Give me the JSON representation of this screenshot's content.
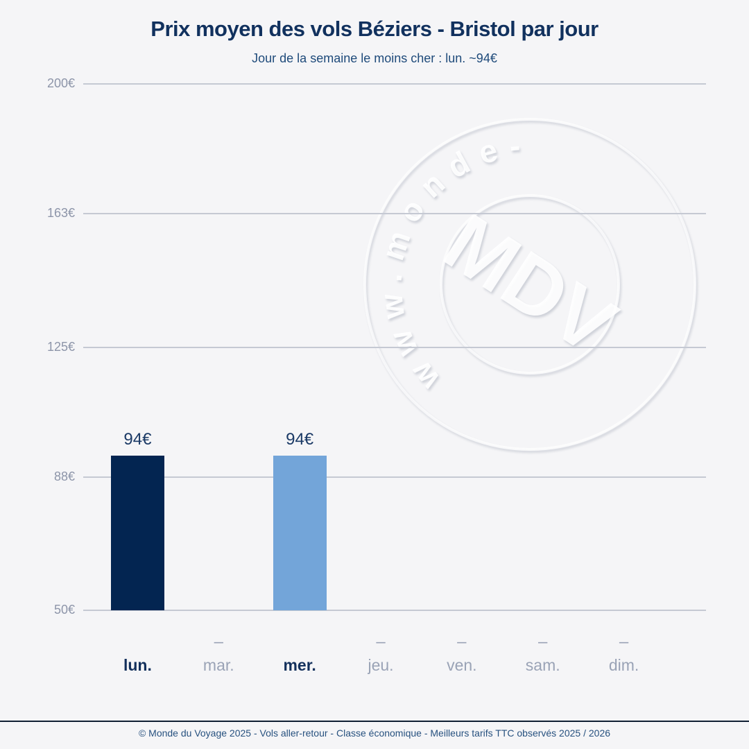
{
  "title": "Prix moyen des vols Béziers - Bristol par jour",
  "subtitle": "Jour de la semaine le moins cher : lun. ~94€",
  "watermark": {
    "ring_text": "www.monde-du-voyage.com ·",
    "center_text": "MDV"
  },
  "footer": {
    "text": "© Monde du Voyage 2025 - Vols aller-retour - Classe économique - Meilleurs tarifs TTC observés 2025 / 2026"
  },
  "colors": {
    "background": "#f5f5f7",
    "title": "#11315e",
    "subtitle": "#1e4a7a",
    "grid": "#c5c9d3",
    "axis_label": "#8d95a9",
    "bar_primary": "#032551",
    "bar_secondary": "#73a5d9",
    "value_label": "#1b3a66",
    "day_active": "#13305c",
    "day_inactive": "#9aa3b6",
    "footer_text": "#27517f",
    "footer_line": "#101f33"
  },
  "chart_data": {
    "type": "bar",
    "title": "Prix moyen des vols Béziers - Bristol par jour",
    "subtitle": "Jour de la semaine le moins cher : lun. ~94€",
    "categories": [
      "lun.",
      "mar.",
      "mer.",
      "jeu.",
      "ven.",
      "sam.",
      "dim."
    ],
    "values": [
      94,
      null,
      94,
      null,
      null,
      null,
      null
    ],
    "value_labels": [
      "94€",
      null,
      "94€",
      null,
      null,
      null,
      null
    ],
    "bar_colors": [
      "#032551",
      null,
      "#73a5d9",
      null,
      null,
      null,
      null
    ],
    "no_data_marker": "–",
    "xlabel": "",
    "ylabel": "",
    "ylim": [
      50,
      200
    ],
    "yticks": [
      200,
      163,
      125,
      88,
      50
    ],
    "ytick_labels": [
      "200€",
      "163€",
      "125€",
      "88€",
      "50€"
    ],
    "grid": true,
    "legend": false,
    "currency": "€"
  }
}
